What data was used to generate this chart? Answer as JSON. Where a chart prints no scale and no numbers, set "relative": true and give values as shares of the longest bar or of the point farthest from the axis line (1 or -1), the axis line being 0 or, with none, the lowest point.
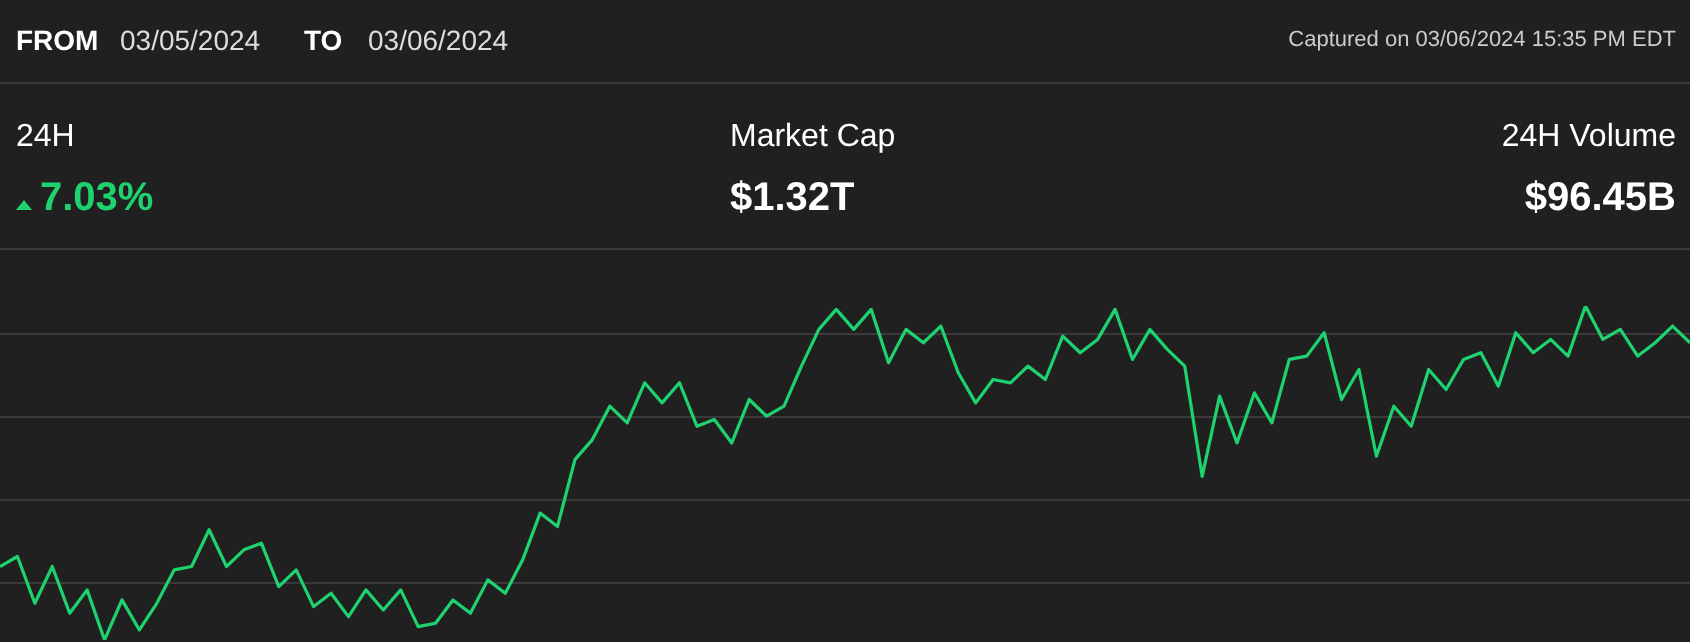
{
  "chart_data": {
    "type": "line",
    "relative": true,
    "grid": "y",
    "marker": "none",
    "line_style": "solid",
    "annotations": [
      "FROM",
      "03/05/2024",
      "TO",
      "03/06/2024",
      "Captured on 03/06/2024 15:35 PM EDT",
      "24H",
      "7.03%",
      "Market Cap",
      "$1.32T",
      "24H Volume",
      "$96.45B"
    ],
    "categories": [
      null,
      null,
      null,
      null,
      null,
      null,
      null,
      null,
      null,
      null,
      null,
      null,
      null,
      null,
      null,
      null,
      null,
      null,
      null,
      null,
      null,
      null,
      null,
      null,
      null,
      null,
      null,
      null,
      null,
      null,
      null,
      null,
      null,
      null,
      null,
      null,
      null,
      null,
      null,
      null,
      null,
      null,
      null,
      null,
      null,
      null,
      null,
      null,
      null,
      null,
      null,
      null,
      null,
      null,
      null,
      null,
      null,
      null,
      null,
      null,
      null,
      null,
      null,
      null,
      null,
      null,
      null,
      null,
      null,
      null,
      null,
      null,
      null,
      null,
      null,
      null,
      null,
      null,
      null,
      null,
      null,
      null,
      null,
      null,
      null,
      null,
      null,
      null,
      null,
      null,
      null,
      null,
      null,
      null,
      null,
      null,
      null,
      null
    ],
    "series": [
      {
        "color": "#1ed36f",
        "values": [
          0.22,
          0.25,
          0.11,
          0.22,
          0.08,
          0.15,
          0,
          0.12,
          0.03,
          0.11,
          0.21,
          0.22,
          0.33,
          0.22,
          0.27,
          0.29,
          0.16,
          0.21,
          0.1,
          0.14,
          0.07,
          0.15,
          0.09,
          0.15,
          0.04,
          0.05,
          0.12,
          0.08,
          0.18,
          0.14,
          0.24,
          0.38,
          0.34,
          0.54,
          0.6,
          0.7,
          0.65,
          0.77,
          0.71,
          0.77,
          0.64,
          0.66,
          0.59,
          0.72,
          0.67,
          0.7,
          0.82,
          0.93,
          0.99,
          0.93,
          0.99,
          0.83,
          0.93,
          0.89,
          0.94,
          0.8,
          0.71,
          0.78,
          0.77,
          0.82,
          0.78,
          0.91,
          0.86,
          0.9,
          0.99,
          0.84,
          0.93,
          0.87,
          0.82,
          0.49,
          0.73,
          0.59,
          0.74,
          0.65,
          0.84,
          0.85,
          0.92,
          0.72,
          0.81,
          0.55,
          0.7,
          0.64,
          0.81,
          0.75,
          0.84,
          0.86,
          0.76,
          0.92,
          0.86,
          0.9,
          0.85,
          1,
          0.9,
          0.93,
          0.85,
          0.89,
          0.94,
          0.89
        ]
      }
    ]
  }
}
